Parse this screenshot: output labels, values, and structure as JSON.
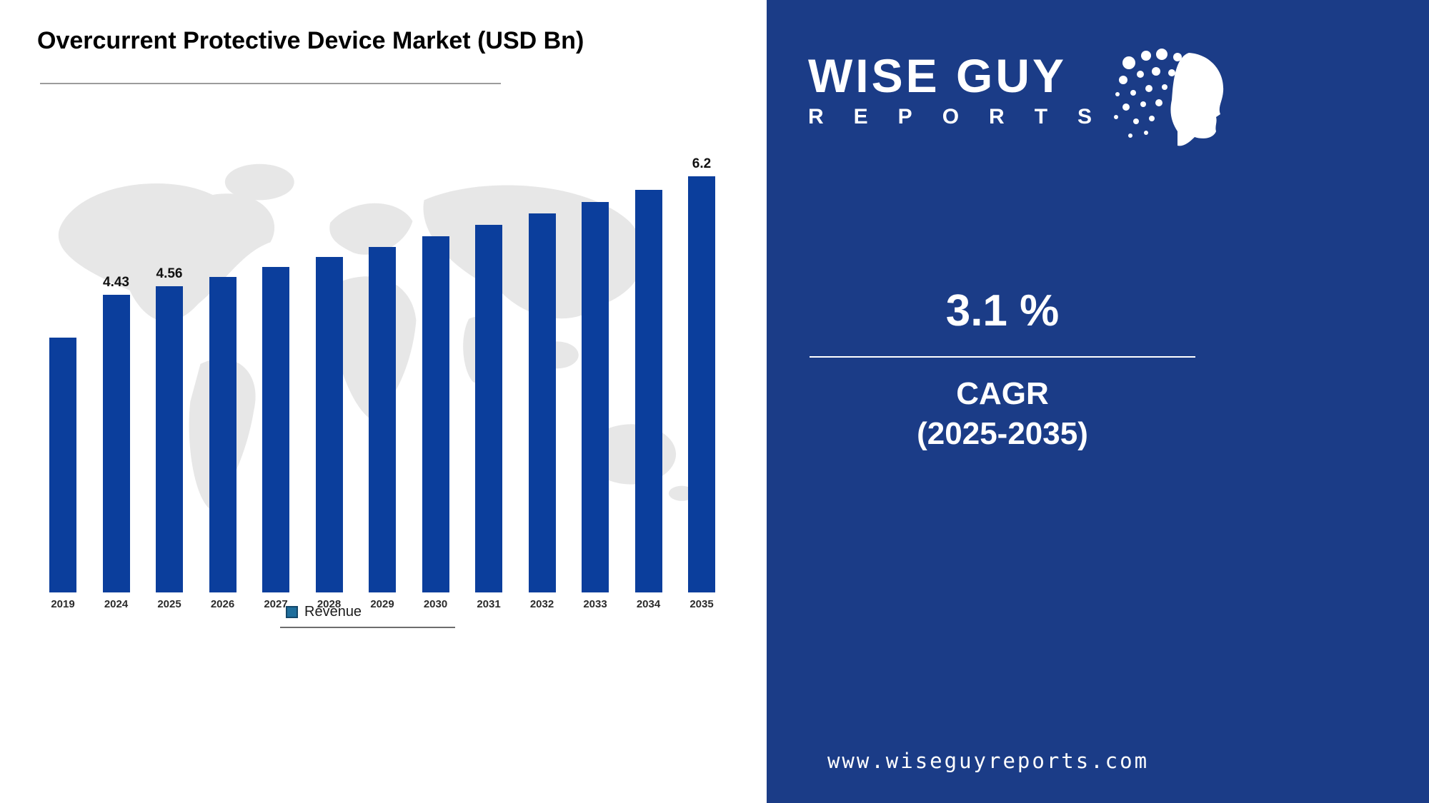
{
  "header": {
    "title": "Overcurrent Protective Device Market (USD Bn)"
  },
  "chart_data": {
    "type": "bar",
    "title": "Overcurrent Protective Device Market (USD Bn)",
    "categories": [
      "2019",
      "2024",
      "2025",
      "2026",
      "2027",
      "2028",
      "2029",
      "2030",
      "2031",
      "2032",
      "2033",
      "2034",
      "2035"
    ],
    "values": [
      3.8,
      4.43,
      4.56,
      4.7,
      4.85,
      5.0,
      5.15,
      5.31,
      5.48,
      5.65,
      5.82,
      6.0,
      6.2
    ],
    "bar_labels": [
      "",
      "4.43",
      "4.56",
      "",
      "",
      "",
      "",
      "",
      "",
      "",
      "",
      "",
      "6.2"
    ],
    "ylim": [
      0,
      6.7
    ],
    "grid": false,
    "bar_color": "#0b3e9c",
    "legend_position": "bottom",
    "legend": [
      {
        "label": "Revenue",
        "color": "#1f6e9c"
      }
    ]
  },
  "sidebar": {
    "background": "#1b3c87",
    "logo": {
      "line1": "WISE GUY",
      "line2": "REPORTS"
    },
    "cagr_value": "3.1 %",
    "cagr_label": "CAGR",
    "cagr_period": "(2025-2035)",
    "website": "www.wiseguyreports.com"
  }
}
